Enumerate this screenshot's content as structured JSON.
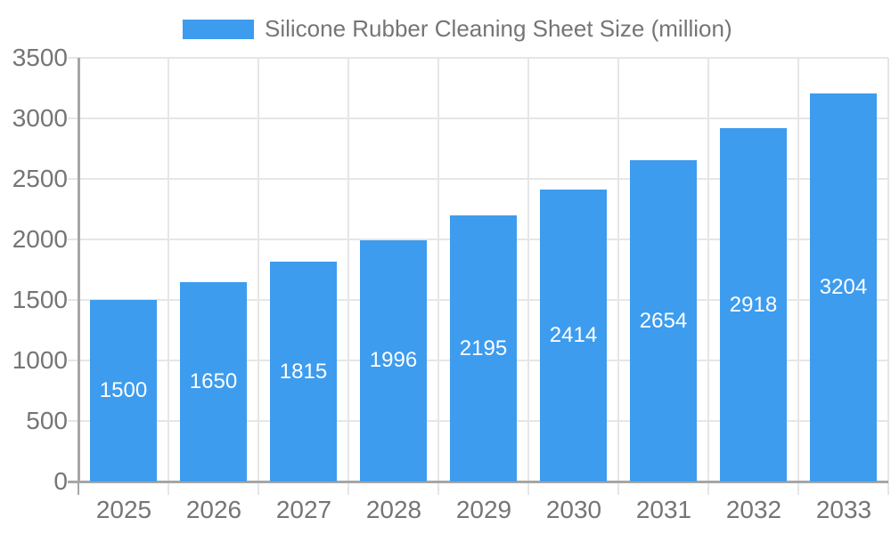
{
  "chart_data": {
    "type": "bar",
    "title": "Silicone Rubber Cleaning Sheet Size (million)",
    "categories": [
      "2025",
      "2026",
      "2027",
      "2028",
      "2029",
      "2030",
      "2031",
      "2032",
      "2033"
    ],
    "values": [
      1500,
      1650,
      1815,
      1996,
      2195,
      2414,
      2654,
      2918,
      3204
    ],
    "xlabel": "",
    "ylabel": "",
    "ylim": [
      0,
      3500
    ],
    "ytick_step": 500,
    "y_tick_labels": [
      "0",
      "500",
      "1000",
      "1500",
      "2000",
      "2500",
      "3000",
      "3500"
    ],
    "grid": true,
    "legend_position": "top-center",
    "bar_labels_position": "inside-center",
    "colors": {
      "bar": "#3D9CEE",
      "bar_label": "#FFFFFF",
      "axis_text": "#757575",
      "grid_line": "#E6E6E6",
      "axis_line": "#A6A6A6"
    }
  },
  "legend": {
    "label": "Silicone Rubber Cleaning Sheet Size (million)"
  }
}
